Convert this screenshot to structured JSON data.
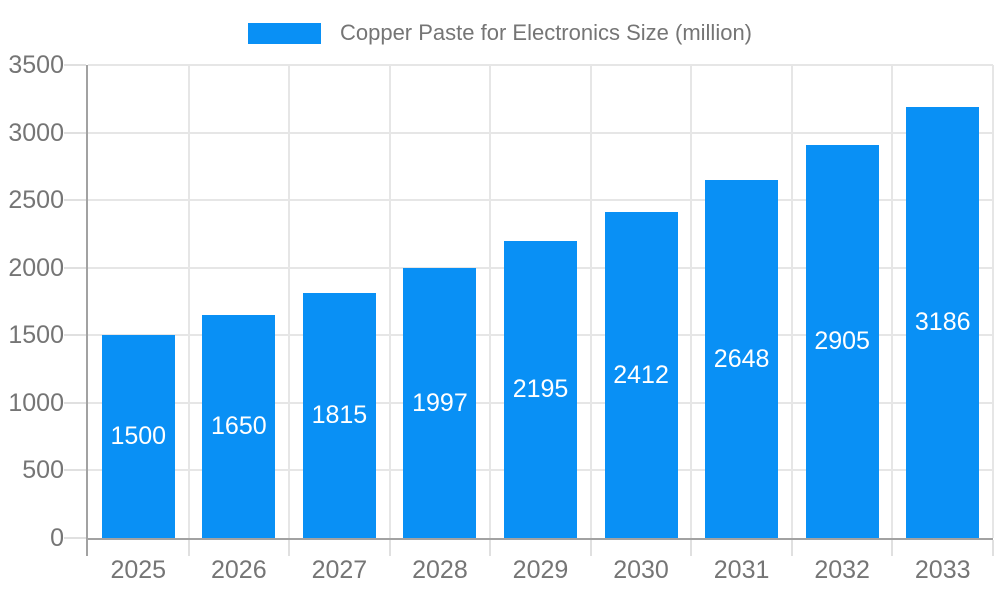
{
  "legend": {
    "label": "Copper Paste for Electronics Size (million)"
  },
  "colors": {
    "bar": "#0990f5",
    "grid": "#e6e6e6",
    "axis_line": "#a2a2a2",
    "tick": "#e0e0e0",
    "axis_text": "#757575",
    "value_text": "#ffffff",
    "background": "#ffffff"
  },
  "chart_data": {
    "type": "bar",
    "title": "Copper Paste for Electronics Size (million)",
    "categories": [
      "2025",
      "2026",
      "2027",
      "2028",
      "2029",
      "2030",
      "2031",
      "2032",
      "2033"
    ],
    "values": [
      1500,
      1650,
      1815,
      1997,
      2195,
      2412,
      2648,
      2905,
      3186
    ],
    "xlabel": "",
    "ylabel": "",
    "ylim": [
      0,
      3500
    ],
    "yticks": [
      0,
      500,
      1000,
      1500,
      2000,
      2500,
      3000,
      3500
    ],
    "grid": true,
    "legend_position": "top",
    "value_labels": "inside-center-white"
  }
}
